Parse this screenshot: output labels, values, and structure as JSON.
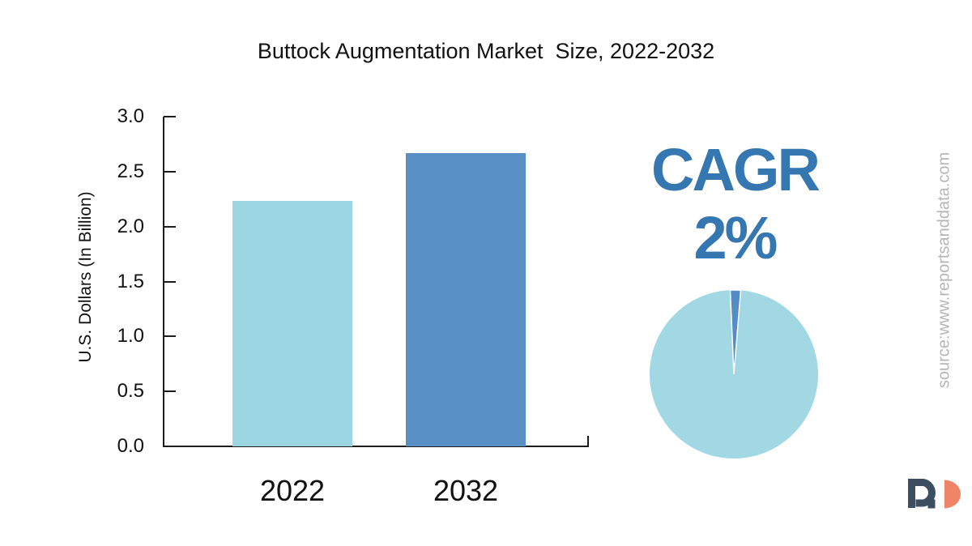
{
  "title": "Buttock Augmentation Market  Size, 2022-2032",
  "chart_data": [
    {
      "type": "bar",
      "categories": [
        "2022",
        "2032"
      ],
      "values": [
        2.23,
        2.67
      ],
      "ylabel": "U.S. Dollars (In Billion)",
      "xlabel": "",
      "ylim": [
        0,
        3.0
      ],
      "ytick_labels": [
        "0.0",
        "0.5",
        "1.0",
        "1.5",
        "2.0",
        "2.5",
        "3.0"
      ],
      "bar_colors": [
        "#9cd6e2",
        "#5a8fc6"
      ],
      "grid": "off",
      "legend": "none"
    },
    {
      "type": "pie",
      "values": [
        2,
        98
      ],
      "colors": [
        "#568cc6",
        "#a1d8e3"
      ],
      "note": "thin 2% slice at 12 o'clock"
    }
  ],
  "annotations": {
    "cagr_label": "CAGR",
    "cagr_value": "2%",
    "cagr_color": "#3578b1"
  },
  "source": "source:www.reportsanddata.com",
  "logo": {
    "text": "RD",
    "navy": "#3d4e63",
    "coral": "#f08467"
  },
  "colors": {
    "axis": "#1c1c1c",
    "background": "#ffffff"
  }
}
